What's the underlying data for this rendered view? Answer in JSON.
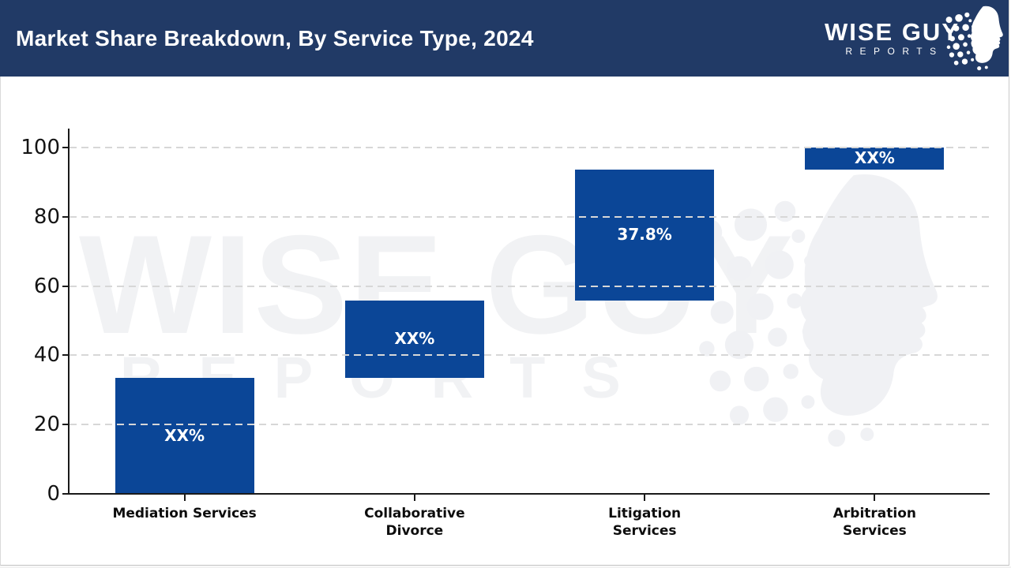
{
  "header": {
    "title": "Market Share Breakdown, By Service Type, 2024",
    "logo": {
      "brand": "WISE GUY",
      "sub": "REPORTS"
    }
  },
  "watermark": {
    "brand": "WISE GUY",
    "sub": "REPORTS"
  },
  "colors": {
    "header_bg": "#213a66",
    "bar": "#0b4697",
    "bar_label": "#ffffff",
    "grid": "#d7d7d7",
    "axis": "#1a1a1a",
    "watermark": "#f1f2f4",
    "title_text": "#ffffff",
    "tick_text": "#141414"
  },
  "chart_data": {
    "type": "bar",
    "variant": "waterfall",
    "title": "Market Share Breakdown, By Service Type, 2024",
    "categories": [
      "Mediation Services",
      "Collaborative\nDivorce",
      "Litigation\nServices",
      "Arbitration\nServices"
    ],
    "segments": [
      {
        "category": "Mediation Services",
        "start": 0,
        "end": 33.4,
        "value": 33.4,
        "label": "XX%"
      },
      {
        "category": "Collaborative Divorce",
        "start": 33.4,
        "end": 55.8,
        "value": 22.4,
        "label": "XX%"
      },
      {
        "category": "Litigation Services",
        "start": 55.8,
        "end": 93.6,
        "value": 37.8,
        "label": "37.8%"
      },
      {
        "category": "Arbitration Services",
        "start": 93.6,
        "end": 100,
        "value": 6.4,
        "label": "XX%"
      }
    ],
    "yticks": [
      0,
      20,
      40,
      60,
      80,
      100
    ],
    "ylim": [
      0,
      105.5
    ],
    "xlabel": "",
    "ylabel": "",
    "grid": "horizontal-dashed",
    "legend": "none",
    "bar_color": "#0b4697",
    "label_color": "#ffffff"
  }
}
